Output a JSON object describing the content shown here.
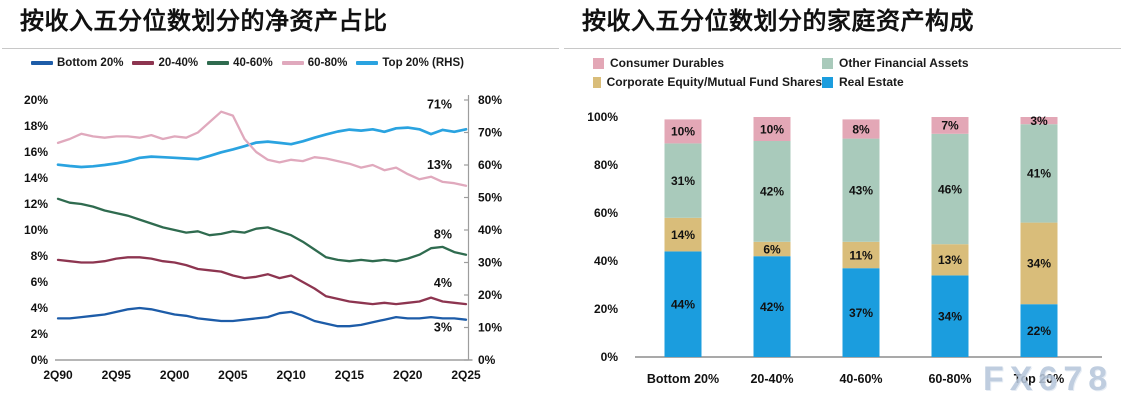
{
  "watermark": "FX678",
  "chart_data": [
    {
      "type": "line",
      "title": "按收入五分位数划分的净资产占比",
      "x": [
        1990,
        1991,
        1992,
        1993,
        1994,
        1995,
        1996,
        1997,
        1998,
        1999,
        2000,
        2001,
        2002,
        2003,
        2004,
        2005,
        2006,
        2007,
        2008,
        2009,
        2010,
        2011,
        2012,
        2013,
        2014,
        2015,
        2016,
        2017,
        2018,
        2019,
        2020,
        2021,
        2022,
        2023,
        2024,
        2025
      ],
      "x_tick_years": [
        1990,
        1995,
        2000,
        2005,
        2010,
        2015,
        2020,
        2025
      ],
      "x_tick_labels": [
        "2Q90",
        "2Q95",
        "2Q00",
        "2Q05",
        "2Q10",
        "2Q15",
        "2Q20",
        "2Q25"
      ],
      "left_axis": {
        "min": 0,
        "max": 20,
        "tick_labels": [
          "20%",
          "18%",
          "16%",
          "14%",
          "12%",
          "10%",
          "8%",
          "6%",
          "4%",
          "2%",
          "0%"
        ]
      },
      "right_axis": {
        "min": 0,
        "max": 80,
        "tick_labels": [
          "80%",
          "70%",
          "60%",
          "50%",
          "40%",
          "30%",
          "20%",
          "10%",
          "0%"
        ]
      },
      "legend_position": "top",
      "grid": false,
      "series": [
        {
          "name": "Bottom 20%",
          "axis": "left",
          "color": "#1d5ca8",
          "end_label": "3%",
          "values": [
            3.2,
            3.2,
            3.3,
            3.4,
            3.5,
            3.7,
            3.9,
            4.0,
            3.9,
            3.7,
            3.5,
            3.4,
            3.2,
            3.1,
            3.0,
            3.0,
            3.1,
            3.2,
            3.3,
            3.6,
            3.7,
            3.4,
            3.0,
            2.8,
            2.6,
            2.6,
            2.7,
            2.9,
            3.1,
            3.3,
            3.2,
            3.2,
            3.3,
            3.2,
            3.2,
            3.1
          ]
        },
        {
          "name": "20-40%",
          "axis": "left",
          "color": "#8d3550",
          "end_label": "4%",
          "values": [
            7.7,
            7.6,
            7.5,
            7.5,
            7.6,
            7.8,
            7.9,
            7.9,
            7.8,
            7.6,
            7.5,
            7.3,
            7.0,
            6.9,
            6.8,
            6.5,
            6.3,
            6.4,
            6.6,
            6.3,
            6.5,
            6.0,
            5.5,
            4.9,
            4.7,
            4.5,
            4.4,
            4.3,
            4.4,
            4.3,
            4.4,
            4.5,
            4.8,
            4.5,
            4.4,
            4.3
          ]
        },
        {
          "name": "40-60%",
          "axis": "left",
          "color": "#2f6b4f",
          "end_label": "8%",
          "values": [
            12.4,
            12.1,
            12.0,
            11.8,
            11.5,
            11.3,
            11.1,
            10.8,
            10.5,
            10.2,
            10.0,
            9.8,
            9.9,
            9.6,
            9.7,
            9.9,
            9.8,
            10.1,
            10.2,
            9.9,
            9.6,
            9.1,
            8.5,
            7.9,
            7.7,
            7.6,
            7.7,
            7.6,
            7.7,
            7.6,
            7.8,
            8.1,
            8.6,
            8.7,
            8.3,
            8.1
          ]
        },
        {
          "name": "60-80%",
          "axis": "left",
          "color": "#e0a9bd",
          "end_label": "13%",
          "values": [
            16.7,
            17.0,
            17.4,
            17.2,
            17.1,
            17.2,
            17.2,
            17.1,
            17.3,
            17.0,
            17.2,
            17.1,
            17.5,
            18.3,
            19.1,
            18.8,
            17.0,
            16.0,
            15.4,
            15.2,
            15.4,
            15.3,
            15.6,
            15.5,
            15.3,
            15.1,
            14.8,
            15.0,
            14.6,
            14.8,
            14.3,
            13.9,
            14.1,
            13.7,
            13.6,
            13.4
          ]
        },
        {
          "name": "Top 20% (RHS)",
          "axis": "right",
          "color": "#2aa3e0",
          "end_label": "71%",
          "values": [
            60.1,
            59.7,
            59.4,
            59.6,
            60.0,
            60.5,
            61.2,
            62.2,
            62.6,
            62.4,
            62.2,
            62.0,
            61.8,
            62.8,
            63.9,
            64.8,
            65.8,
            66.9,
            67.2,
            66.8,
            66.4,
            67.3,
            68.4,
            69.4,
            70.3,
            70.9,
            70.6,
            71.0,
            70.2,
            71.3,
            71.5,
            71.0,
            69.5,
            70.8,
            70.2,
            71.0
          ]
        }
      ]
    },
    {
      "type": "stacked_bar",
      "title": "按收入五分位数划分的家庭资产构成",
      "categories": [
        "Bottom 20%",
        "20-40%",
        "40-60%",
        "60-80%",
        "Top 20%"
      ],
      "y_axis": {
        "min": 0,
        "max": 100,
        "tick_values": [
          0,
          20,
          40,
          60,
          80,
          100
        ],
        "tick_labels": [
          "0%",
          "20%",
          "40%",
          "60%",
          "80%",
          "100%"
        ]
      },
      "grid": false,
      "series": [
        {
          "name": "Real Estate",
          "color": "#1b9dde",
          "values": [
            44,
            42,
            37,
            34,
            22
          ]
        },
        {
          "name": "Corporate Equity/Mutual Fund Shares",
          "color": "#d9bd7a",
          "values": [
            14,
            6,
            11,
            13,
            34
          ]
        },
        {
          "name": "Other Financial Assets",
          "color": "#a9cabb",
          "values": [
            31,
            42,
            43,
            46,
            41
          ]
        },
        {
          "name": "Consumer Durables",
          "color": "#e3a7b6",
          "values": [
            10,
            10,
            8,
            7,
            3
          ]
        }
      ],
      "legend_order": [
        "Consumer Durables",
        "Other Financial Assets",
        "Corporate Equity/Mutual Fund Shares",
        "Real Estate"
      ]
    }
  ]
}
